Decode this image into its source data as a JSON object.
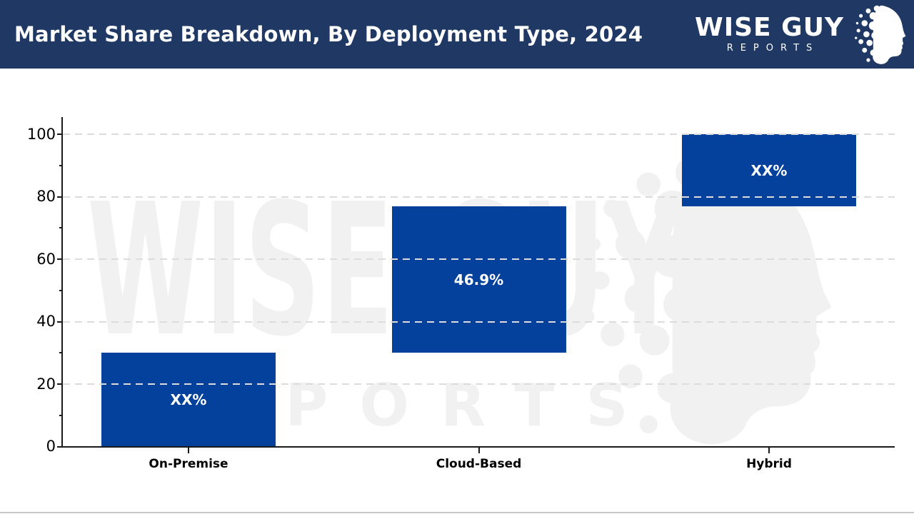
{
  "header": {
    "title": "Market Share Breakdown, By Deployment Type, 2024",
    "logo": {
      "line1": "WISE GUY",
      "line2": "REPORTS"
    }
  },
  "watermark": {
    "line1": "WISE GUY",
    "line2": "REPORTS"
  },
  "colors": {
    "header_bg": "#1f3864",
    "bar": "#04419c",
    "grid": "#dcdcdc",
    "axis": "#1a1a1a",
    "watermark": "#f1f1f1",
    "bar_label_text": "#ffffff",
    "divider": "#c9c9c9"
  },
  "chart_data": {
    "type": "bar",
    "variant": "floating-waterfall",
    "title": "Market Share Breakdown, By Deployment Type, 2024",
    "categories": [
      "On-Premise",
      "Cloud-Based",
      "Hybrid"
    ],
    "bar_bottoms": [
      0,
      30,
      76.9
    ],
    "bar_tops": [
      30,
      76.9,
      100
    ],
    "values": [
      30,
      46.9,
      23.1
    ],
    "bar_labels": [
      "XX%",
      "46.9%",
      "XX%"
    ],
    "xlabel": "",
    "ylabel": "",
    "ylim": [
      0,
      100
    ],
    "yticks": [
      0,
      20,
      40,
      60,
      80,
      100
    ],
    "minor_yticks": [
      10,
      30,
      50,
      70,
      90
    ],
    "grid": "horizontal dashed, drawn over bars",
    "legend": "none"
  }
}
